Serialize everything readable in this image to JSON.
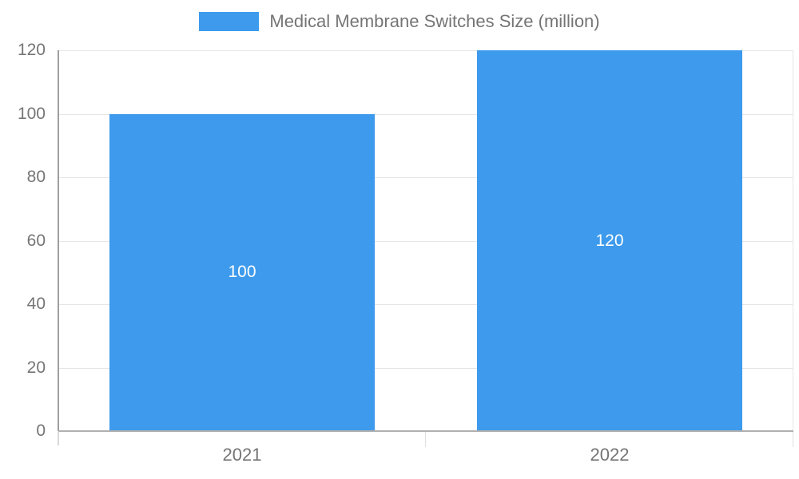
{
  "legend": {
    "label": "Medical Membrane Switches Size (million)"
  },
  "chart_data": {
    "type": "bar",
    "title": "",
    "categories": [
      "2021",
      "2022"
    ],
    "series": [
      {
        "name": "Medical Membrane Switches Size (million)",
        "values": [
          100,
          120
        ]
      }
    ],
    "value_labels": [
      "100",
      "120"
    ],
    "xlabel": "",
    "ylabel": "",
    "ylim": [
      0,
      120
    ],
    "yticks": [
      0,
      20,
      40,
      60,
      80,
      100,
      120
    ],
    "grid": true,
    "legend_position": "top-center",
    "bar_width_fraction": 0.72
  },
  "colors": {
    "bar": "#3D9AEC",
    "gridline": "#e6e6e6",
    "y_axis_line": "#9e9e9e",
    "x_axis_line": "#b0b0b0",
    "tick_text": "#757575",
    "value_label_text": "#ffffff",
    "background": "#ffffff"
  }
}
